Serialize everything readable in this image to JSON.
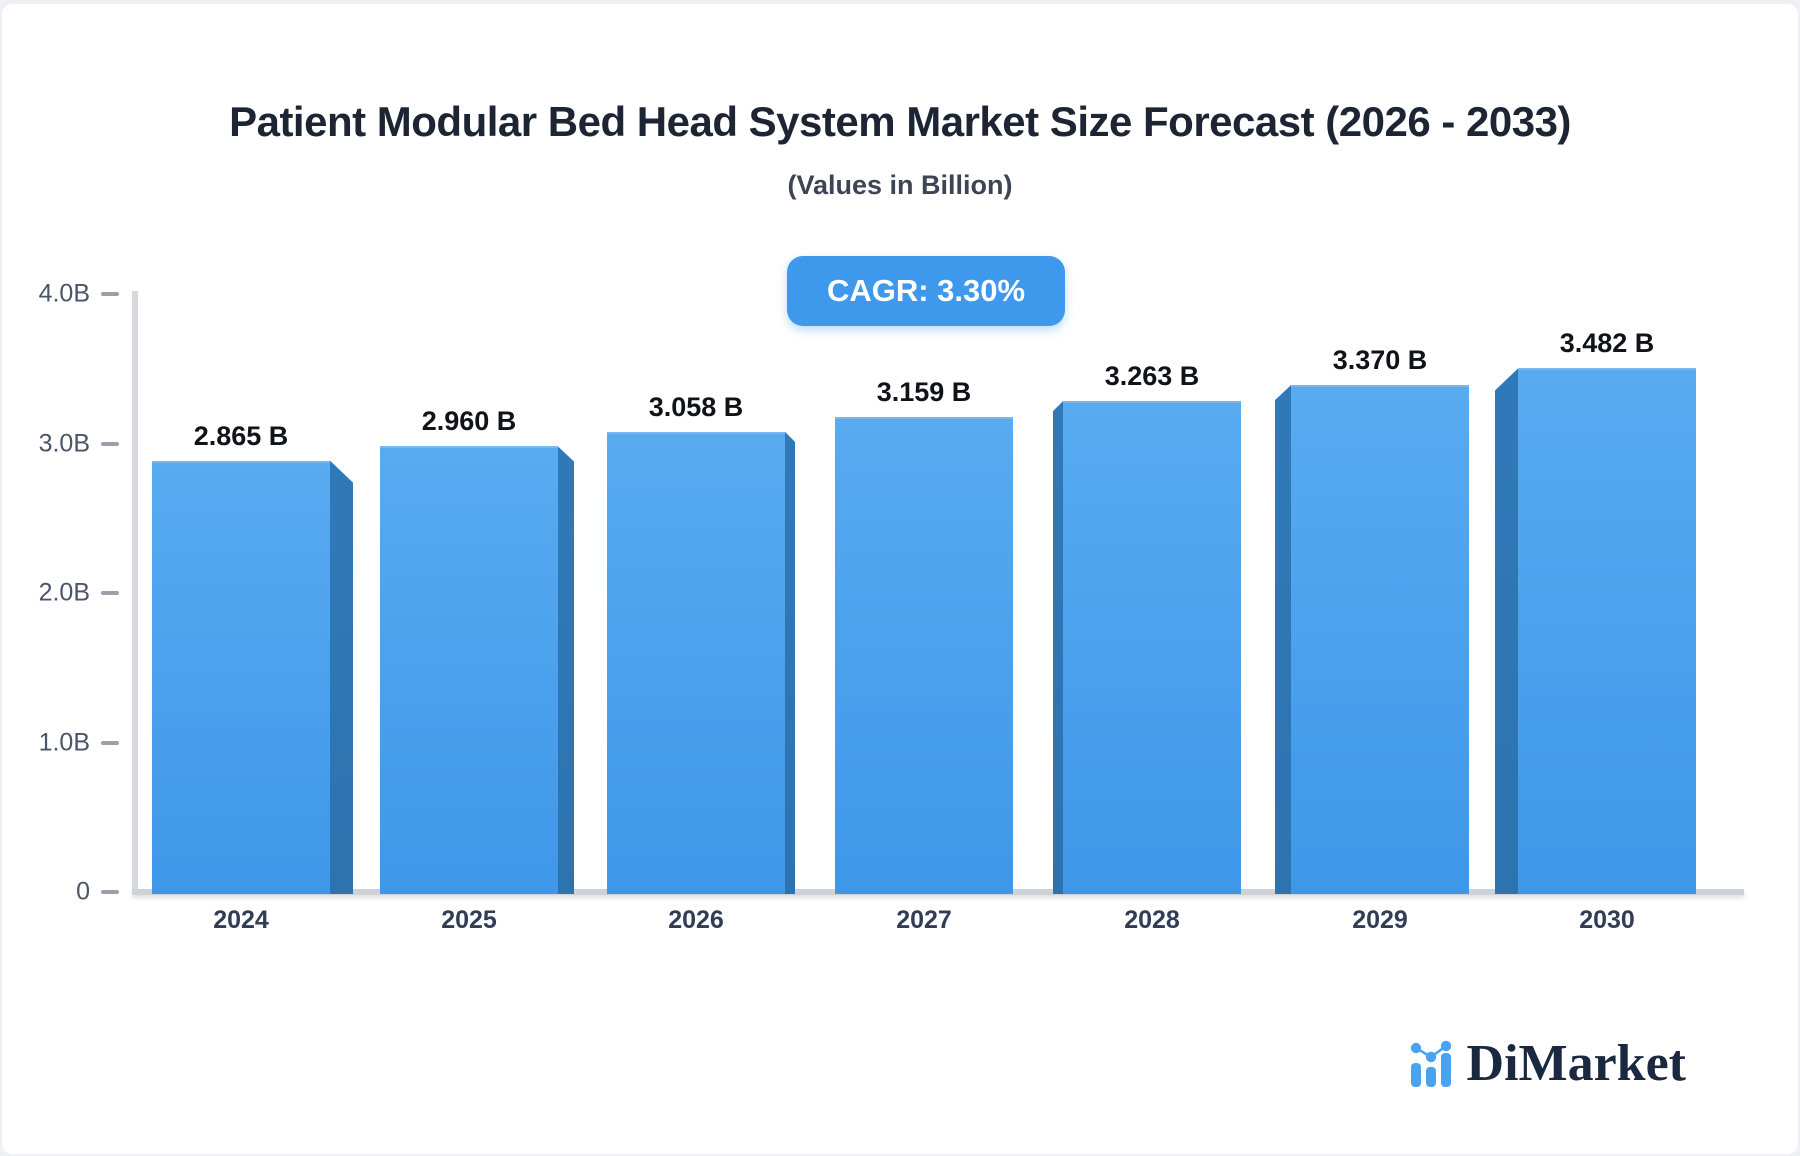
{
  "title": "Patient Modular Bed Head System Market Size Forecast (2026 - 2033)",
  "subtitle": "(Values in Billion)",
  "badge": {
    "label": "CAGR: 3.30%",
    "background_color": "#3e99ed",
    "text_color": "#ffffff"
  },
  "logo": {
    "text": "DiMarket",
    "icon": "bar-line-chart-icon",
    "icon_color": "#4aa3f0",
    "text_color": "#1b2940"
  },
  "chart_data": {
    "type": "bar",
    "title": "Patient Modular Bed Head System Market Size Forecast (2026 - 2033)",
    "subtitle": "(Values in Billion)",
    "categories": [
      "2024",
      "2025",
      "2026",
      "2027",
      "2028",
      "2029",
      "2030"
    ],
    "values": [
      2.865,
      2.96,
      3.058,
      3.159,
      3.263,
      3.37,
      3.482
    ],
    "bar_labels": [
      "2.865 B",
      "2.960 B",
      "3.058 B",
      "3.159 B",
      "3.263 B",
      "3.370 B",
      "3.482 B"
    ],
    "xlabel": "",
    "ylabel": "",
    "ylim": [
      0,
      4
    ],
    "yticks": [
      0,
      1,
      2,
      3,
      4
    ],
    "ytick_labels": [
      "0",
      "1.0B",
      "2.0B",
      "3.0B",
      "4.0B"
    ],
    "grid": false,
    "legend": null,
    "annotation": "CAGR: 3.30%",
    "style": "3d-perspective-bars",
    "bar_color_top": "#58abf1",
    "bar_color_bottom": "#3f97e9",
    "bar_side_color": "#2d73b0"
  }
}
